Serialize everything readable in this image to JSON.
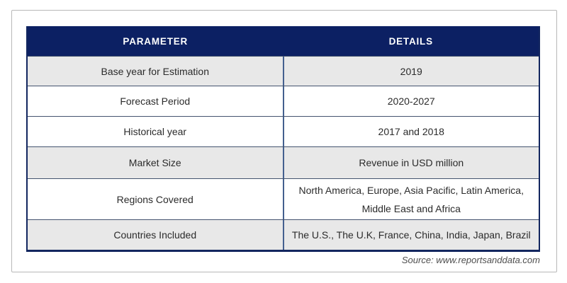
{
  "table": {
    "headers": {
      "parameter": "PARAMETER",
      "details": "DETAILS"
    },
    "rows": [
      {
        "parameter": "Base year for Estimation",
        "details": "2019"
      },
      {
        "parameter": "Forecast Period",
        "details": "2020-2027"
      },
      {
        "parameter": "Historical year",
        "details": "2017 and 2018"
      },
      {
        "parameter": "Market Size",
        "details": "Revenue in USD million"
      },
      {
        "parameter": "Regions Covered",
        "details": "North America, Europe, Asia Pacific, Latin America, Middle East and Africa"
      },
      {
        "parameter": "Countries Included",
        "details": "The U.S., The  U.K, France, China, India, Japan, Brazil"
      }
    ]
  },
  "source": {
    "label": "Source: www.reportsanddata.com"
  },
  "colors": {
    "header_bg": "#0c2063",
    "shaded_row_bg": "#e8e8e8",
    "inner_border": "#44536f",
    "column_divider": "#44608f",
    "table_outline": "#12265f",
    "frame_border": "#b8b8b8",
    "header_text": "#ffffff",
    "cell_text": "#2b2b2b",
    "source_text": "#4e4e4e"
  }
}
